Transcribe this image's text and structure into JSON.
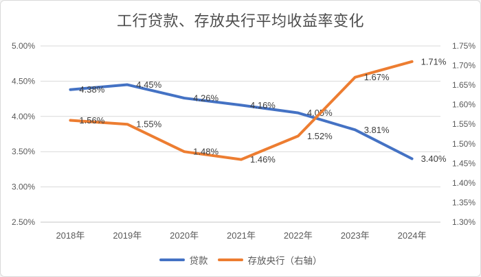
{
  "chart_data": {
    "type": "line",
    "title": "工行贷款、存放央行平均收益率变化",
    "categories": [
      "2018年",
      "2019年",
      "2020年",
      "2021年",
      "2022年",
      "2023年",
      "2024年"
    ],
    "series": [
      {
        "key": "loan",
        "name": "贷款",
        "axis": "left",
        "color": "#4472C4",
        "values": [
          4.38,
          4.45,
          4.26,
          4.16,
          4.05,
          3.81,
          3.4
        ],
        "point_labels": [
          "4.38%",
          "4.45%",
          "4.26%",
          "4.16%",
          "4.05%",
          "3.81%",
          "3.40%"
        ]
      },
      {
        "key": "pboc-deposit",
        "name": "存放央行（右轴）",
        "axis": "right",
        "color": "#ED7D31",
        "values": [
          1.56,
          1.55,
          1.48,
          1.46,
          1.52,
          1.67,
          1.71
        ],
        "point_labels": [
          "1.56%",
          "1.55%",
          "1.48%",
          "1.46%",
          "1.52%",
          "1.67%",
          "1.71%"
        ]
      }
    ],
    "left_axis": {
      "min": 2.5,
      "max": 5.0,
      "tick_labels": [
        "5.00%",
        "4.50%",
        "4.00%",
        "3.50%",
        "3.00%",
        "2.50%"
      ]
    },
    "right_axis": {
      "min": 1.3,
      "max": 1.75,
      "tick_labels": [
        "1.75%",
        "1.70%",
        "1.65%",
        "1.60%",
        "1.55%",
        "1.50%",
        "1.45%",
        "1.40%",
        "1.35%",
        "1.30%"
      ]
    },
    "grid": true,
    "legend_position": "bottom",
    "colors": {
      "gridline": "#d9d9d9",
      "axis_line": "#c6c6c6",
      "title_text": "#4d4d4d",
      "tick_text": "#595959",
      "data_label_text": "#3d3d3d"
    }
  }
}
